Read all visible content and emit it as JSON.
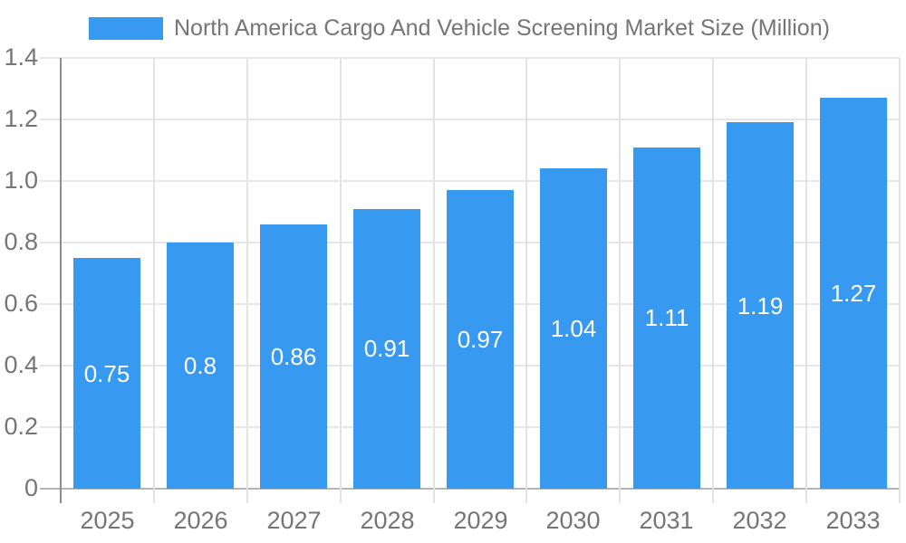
{
  "chart_data": {
    "type": "bar",
    "title": "North America Cargo And Vehicle Screening Market Size (Million)",
    "categories": [
      "2025",
      "2026",
      "2027",
      "2028",
      "2029",
      "2030",
      "2031",
      "2032",
      "2033"
    ],
    "values": [
      0.75,
      0.8,
      0.86,
      0.91,
      0.97,
      1.04,
      1.11,
      1.19,
      1.27
    ],
    "value_labels": [
      "0.75",
      "0.8",
      "0.86",
      "0.91",
      "0.97",
      "1.04",
      "1.11",
      "1.19",
      "1.27"
    ],
    "xlabel": "",
    "ylabel": "",
    "ylim": [
      0,
      1.4
    ],
    "y_ticks": [
      {
        "value": 0,
        "label": "0"
      },
      {
        "value": 0.2,
        "label": "0.2"
      },
      {
        "value": 0.4,
        "label": "0.4"
      },
      {
        "value": 0.6,
        "label": "0.6"
      },
      {
        "value": 0.8,
        "label": "0.8"
      },
      {
        "value": 1.0,
        "label": "1.0"
      },
      {
        "value": 1.2,
        "label": "1.2"
      },
      {
        "value": 1.4,
        "label": "1.4"
      }
    ],
    "grid": true,
    "legend_position": "top",
    "colors": {
      "bar": "#3899F0",
      "value_label": "#ffffff",
      "tick_label": "#757575",
      "title": "#757575",
      "gridline": "#e6e6e6",
      "category_tick": "#e3e3e3",
      "x_axis_line": "#b5b5b5",
      "y_axis_line": "#8c8c8c"
    }
  }
}
